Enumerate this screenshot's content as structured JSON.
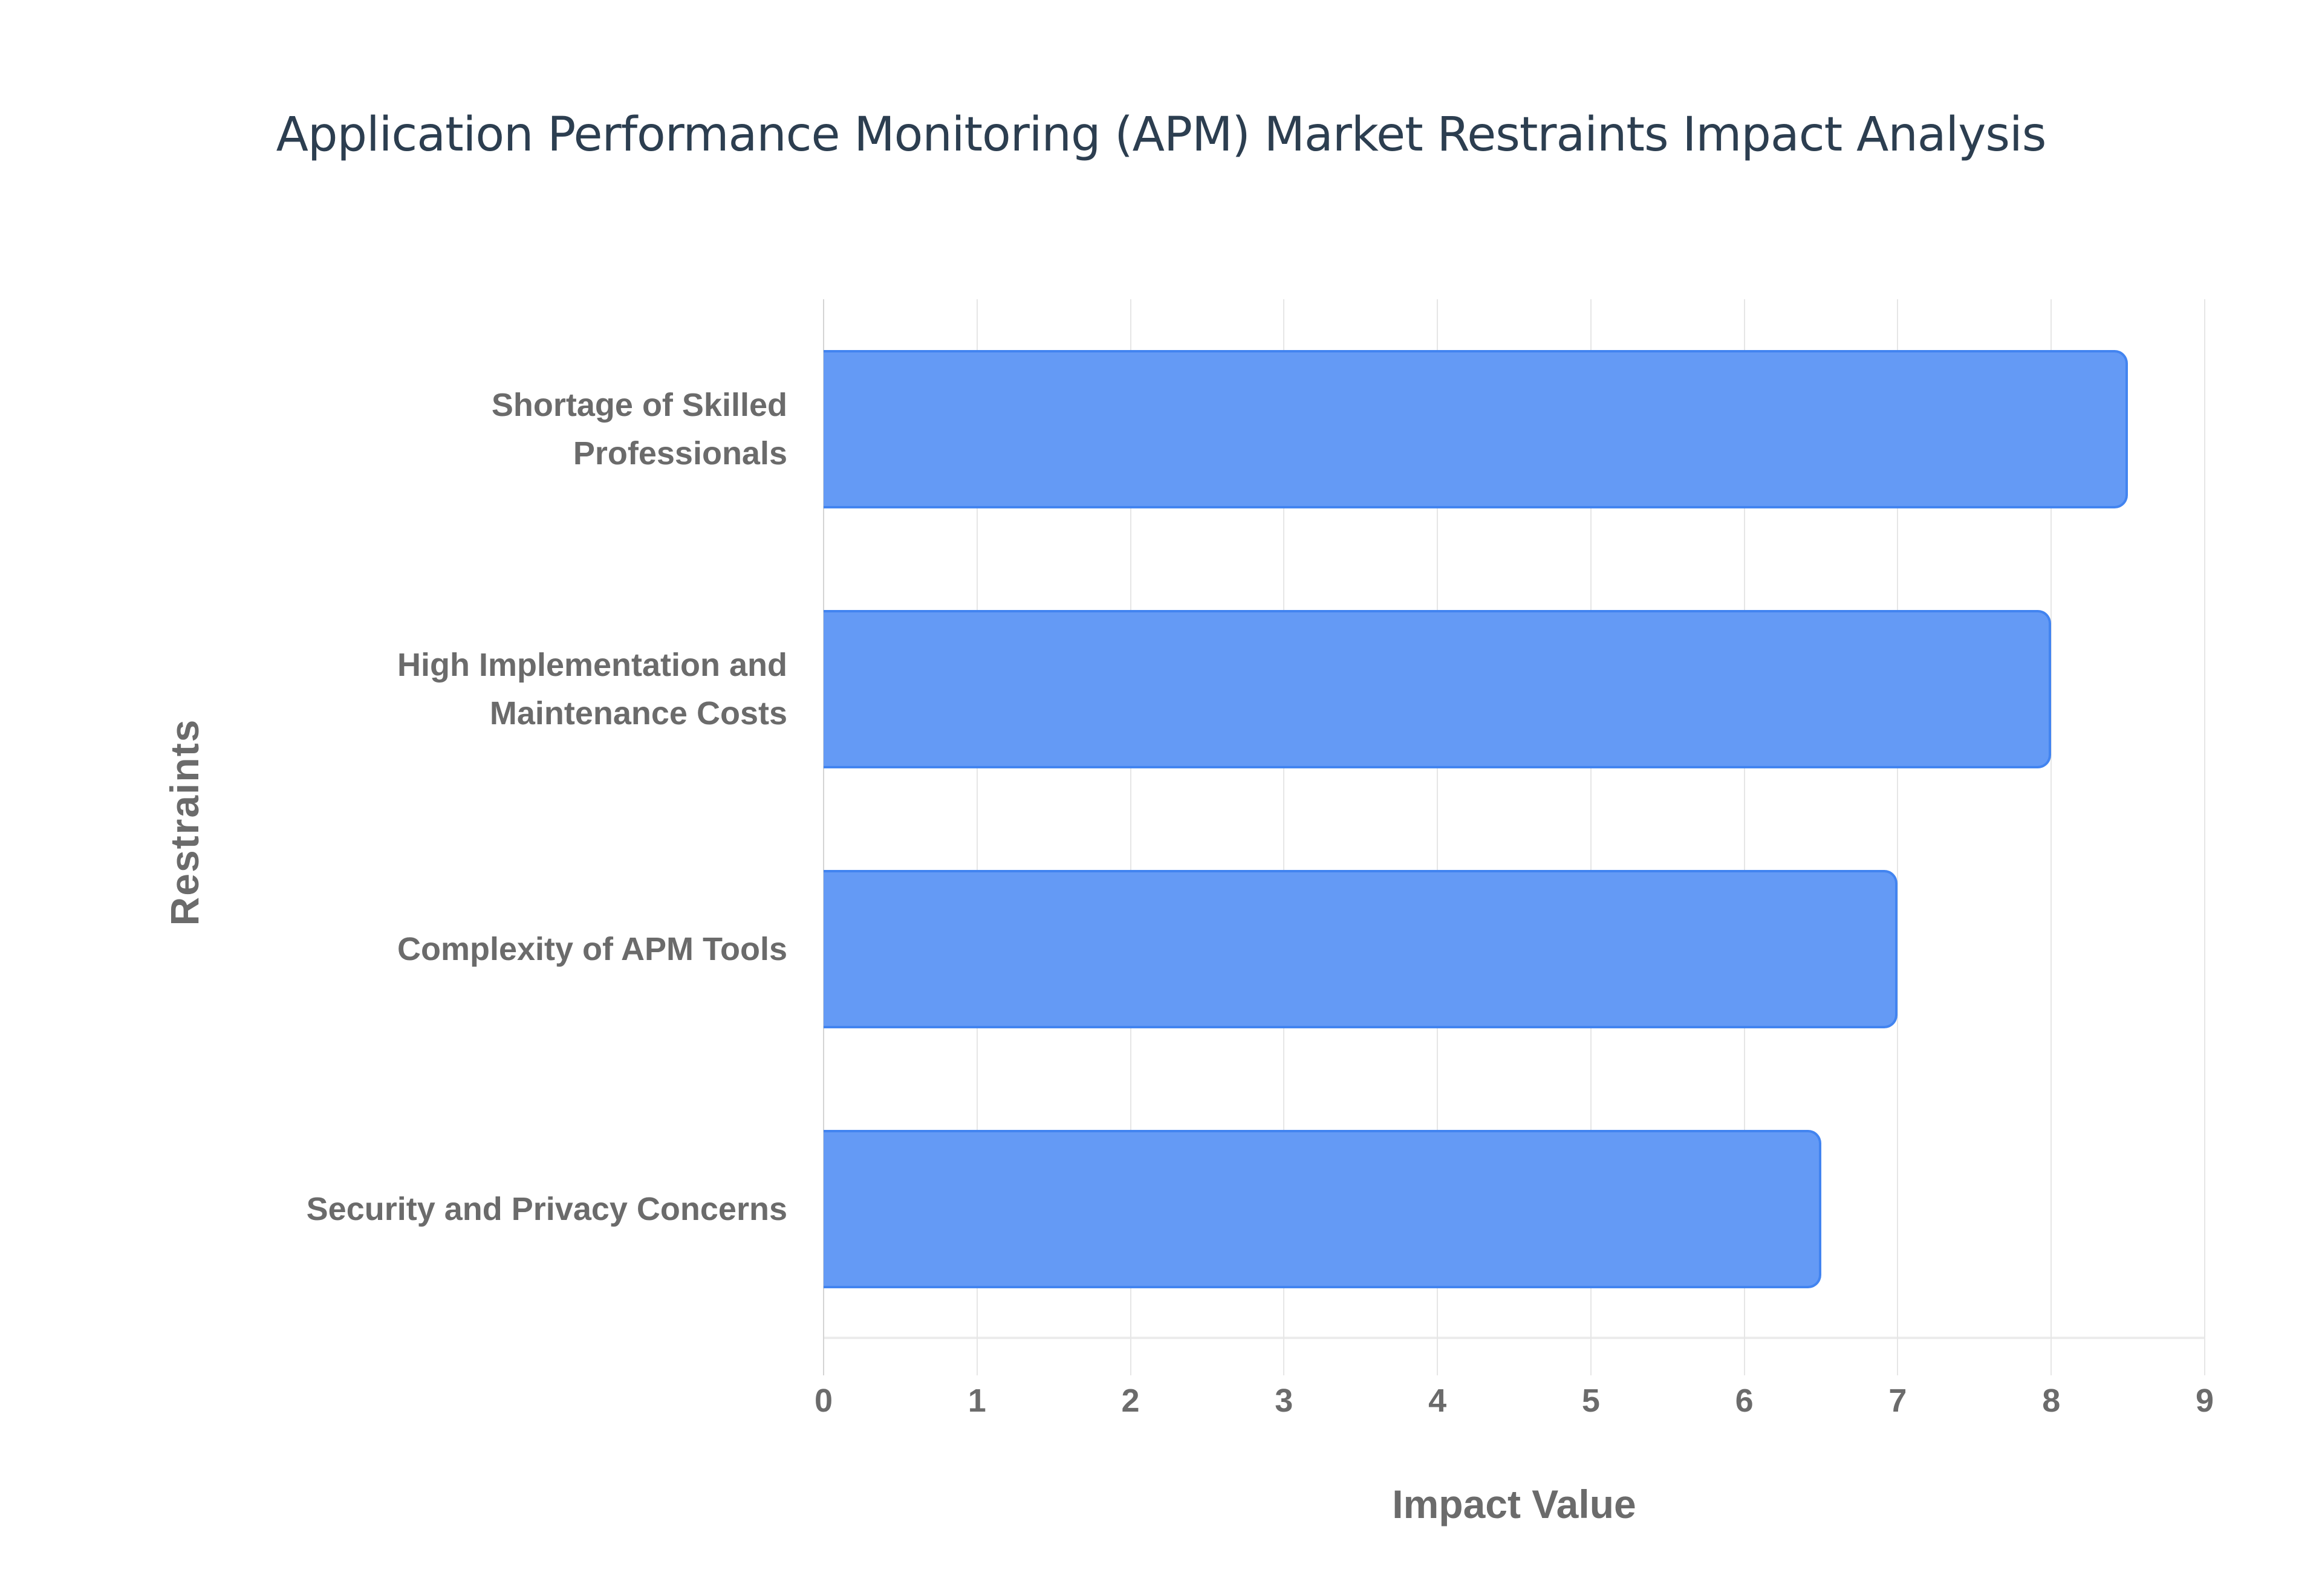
{
  "chart_data": {
    "type": "bar",
    "orientation": "horizontal",
    "title": "Application Performance Monitoring (APM) Market Restraints Impact Analysis",
    "xlabel": "Impact Value",
    "ylabel": "Restraints",
    "categories": [
      "Shortage of Skilled Professionals",
      "High Implementation and Maintenance Costs",
      "Complexity of APM Tools",
      "Security and Privacy Concerns"
    ],
    "category_lines": [
      [
        "Shortage of Skilled",
        "Professionals"
      ],
      [
        "High Implementation and",
        "Maintenance Costs"
      ],
      [
        "Complexity of APM Tools"
      ],
      [
        "Security and Privacy Concerns"
      ]
    ],
    "values": [
      8.5,
      8.0,
      7.0,
      6.5
    ],
    "xlim": [
      0,
      9
    ],
    "xticks": [
      "0",
      "1",
      "2",
      "3",
      "4",
      "5",
      "6",
      "7",
      "8",
      "9"
    ],
    "grid": true,
    "legend": "none",
    "bar_color": "#649af5",
    "bar_border_color": "#4284f0"
  }
}
